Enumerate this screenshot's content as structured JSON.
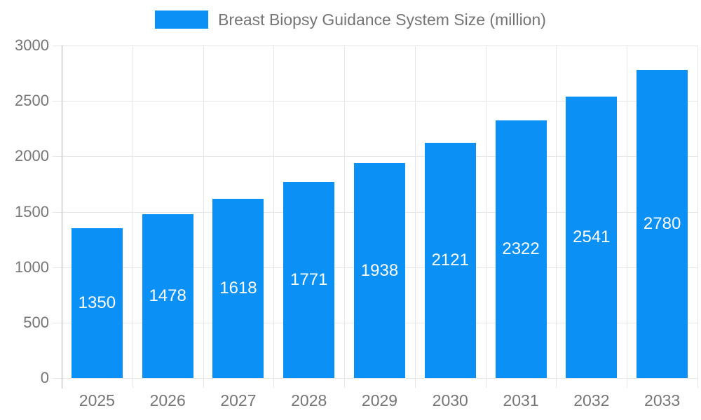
{
  "chart_data": {
    "type": "bar",
    "title": "Breast Biopsy Guidance System Size (million)",
    "categories": [
      "2025",
      "2026",
      "2027",
      "2028",
      "2029",
      "2030",
      "2031",
      "2032",
      "2033"
    ],
    "values": [
      1350,
      1478,
      1618,
      1771,
      1938,
      2121,
      2322,
      2541,
      2780
    ],
    "xlabel": "",
    "ylabel": "",
    "ylim": [
      0,
      3000
    ],
    "yticks": [
      0,
      500,
      1000,
      1500,
      2000,
      2500,
      3000
    ],
    "grid": "on",
    "legend_position": "top-center",
    "colors": {
      "bar": "#0b90f6",
      "grid": "#e6e6e6",
      "axis": "#b0b0b0",
      "text": "#757575",
      "value_text": "#ffffff"
    }
  }
}
